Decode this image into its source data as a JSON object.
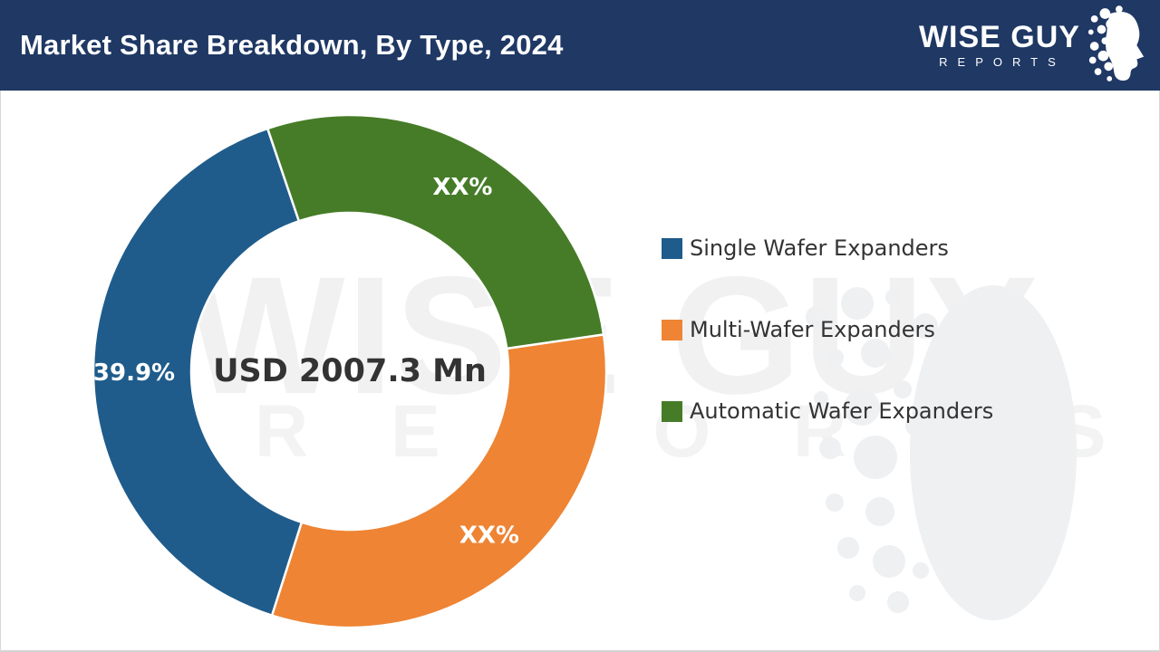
{
  "header": {
    "title": "Market Share Breakdown, By Type, 2024",
    "brand_line1": "WISE GUY",
    "brand_line2": "REPORTS"
  },
  "watermark": {
    "line1": "WISE GUY",
    "line2": "R E P O R T S"
  },
  "chart_data": {
    "type": "pie",
    "subtype": "donut",
    "title": "Market Share Breakdown, By Type, 2024",
    "center_label": "USD 2007.3 Mn",
    "start_angle_deg": 108.7,
    "direction": "counterclockwise",
    "inner_radius_ratio": 0.62,
    "slice_label_color": "#ffffff",
    "legend_position": "right",
    "slices": [
      {
        "label": "Single Wafer Expanders",
        "display": "39.9%",
        "value": 39.9,
        "color": "#1F5C8B"
      },
      {
        "label": "Multi-Wafer Expanders",
        "display": "XX%",
        "value": 32.2,
        "color": "#EE8434"
      },
      {
        "label": "Automatic Wafer Expanders",
        "display": "XX%",
        "value": 27.9,
        "color": "#467C28"
      }
    ]
  },
  "colors": {
    "header_bg": "#1F3864",
    "text_dark": "#333333",
    "border_gray": "#D8D8D8",
    "watermark_gray": "#F1F1F1"
  }
}
